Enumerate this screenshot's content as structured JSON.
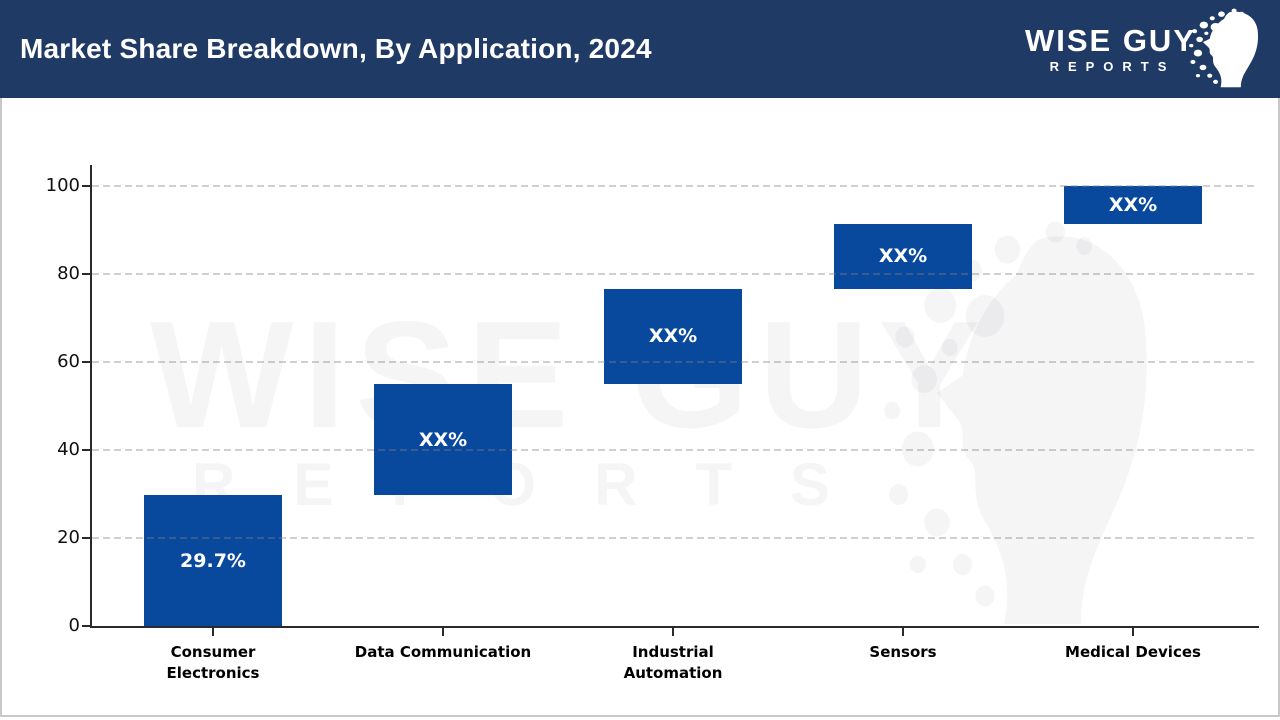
{
  "header": {
    "title": "Market Share Breakdown, By Application, 2024",
    "logo": {
      "line1": "WISE GUY",
      "line2": "REPORTS",
      "face_icon": "dotted-face-profile"
    },
    "background_color": "#203A66",
    "text_color": "#FFFFFF"
  },
  "watermark": {
    "line1": "WISE GUY",
    "line2": "REPORTS"
  },
  "chart_data": {
    "type": "bar",
    "subtype": "waterfall",
    "title": "Market Share Breakdown, By Application, 2024",
    "categories": [
      "Consumer Electronics",
      "Data Communication",
      "Industrial Automation",
      "Sensors",
      "Medical Devices"
    ],
    "category_lines": [
      [
        "Consumer",
        "Electronics"
      ],
      [
        "Data Communication"
      ],
      [
        "Industrial",
        "Automation"
      ],
      [
        "Sensors"
      ],
      [
        "Medical Devices"
      ]
    ],
    "values": [
      29.7,
      25.3,
      21.6,
      14.8,
      8.6
    ],
    "cumulative_start": [
      0,
      29.7,
      55.0,
      76.6,
      91.4
    ],
    "cumulative_end": [
      29.7,
      55.0,
      76.6,
      91.4,
      100.0
    ],
    "bar_labels": [
      "29.7%",
      "XX%",
      "XX%",
      "XX%",
      "XX%"
    ],
    "xlabel": "",
    "ylabel": "",
    "ylim": [
      0,
      105
    ],
    "yticks": [
      0,
      20,
      40,
      60,
      80,
      100
    ],
    "grid": "dashed horizontal, drawn over bars",
    "legend": "none",
    "bar_color": "#08489D",
    "bar_label_color": "#FFFFFF",
    "axis_color": "#2A2A2A",
    "tick_label_color": "#111111"
  }
}
